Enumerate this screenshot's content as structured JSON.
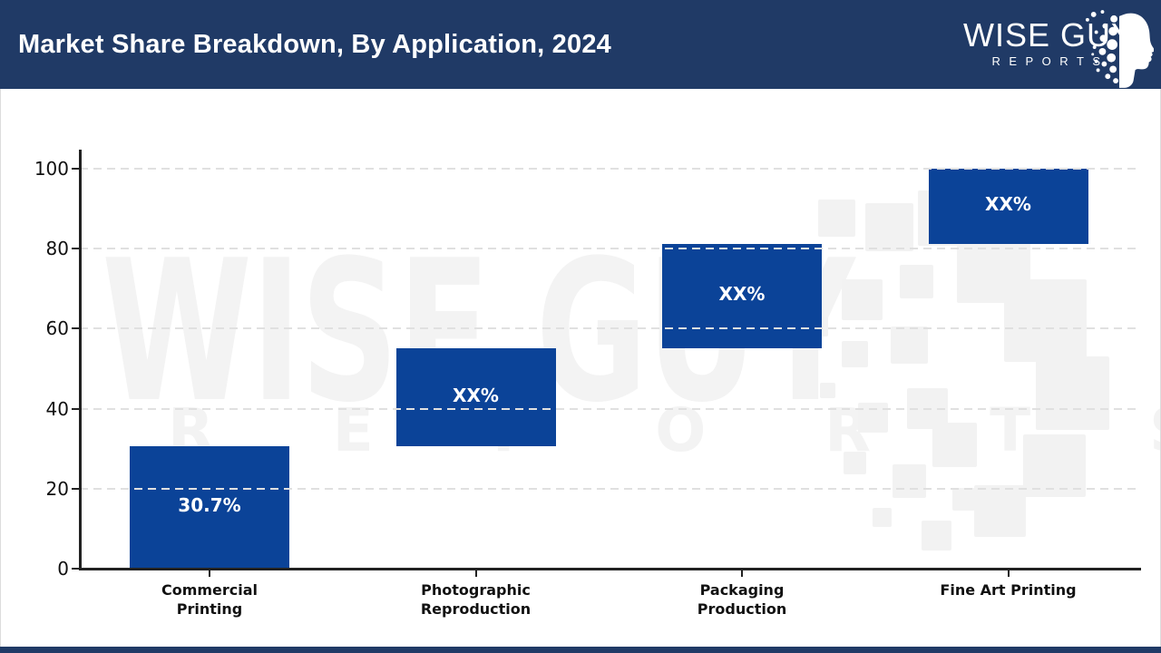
{
  "header": {
    "title": "Market Share Breakdown, By Application, 2024",
    "logo": {
      "line1": "WISE GUY",
      "line2": "REPORTS"
    }
  },
  "watermark": {
    "line1": "WISE GUY",
    "line2": "R E P O R T S"
  },
  "chart_data": {
    "type": "bar",
    "subtype": "waterfall-stacked-segments",
    "title": "Market Share Breakdown, By Application, 2024",
    "categories": [
      "Commercial\nPrinting",
      "Photographic\nReproduction",
      "Packaging\nProduction",
      "Fine Art Printing"
    ],
    "segments": [
      {
        "category": "Commercial Printing",
        "start": 0,
        "end": 30.7,
        "label": "30.7%"
      },
      {
        "category": "Photographic Reproduction",
        "start": 30.7,
        "end": 55.2,
        "label": "XX%"
      },
      {
        "category": "Packaging Production",
        "start": 55.2,
        "end": 81.2,
        "label": "XX%"
      },
      {
        "category": "Fine Art Printing",
        "start": 81.2,
        "end": 100,
        "label": "XX%"
      }
    ],
    "y_ticks": [
      0,
      20,
      40,
      60,
      80,
      100
    ],
    "ylim": [
      0,
      100
    ],
    "xlabel": "",
    "ylabel": "",
    "grid": "horizontal-dashed",
    "legend": "none",
    "bar_color": "#0b4398",
    "grid_color": "#e0e0e0",
    "axis_color": "#222222",
    "header_color": "#203a66"
  }
}
